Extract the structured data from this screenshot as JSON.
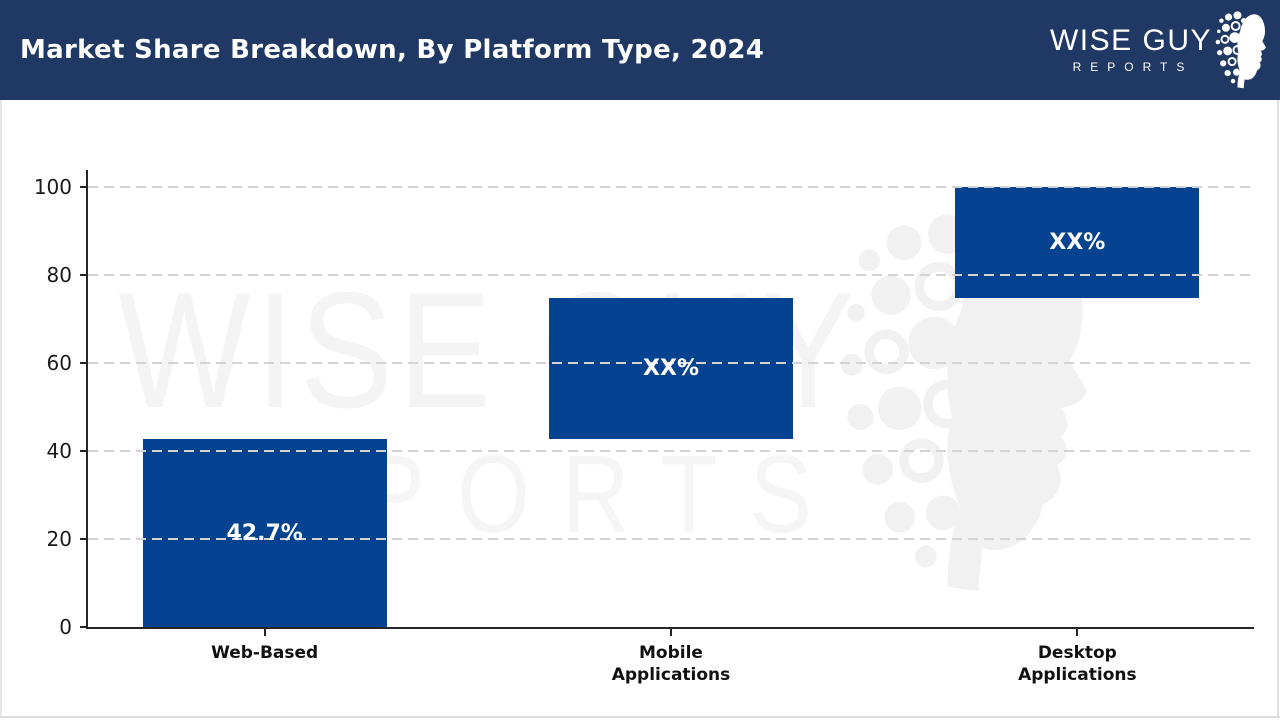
{
  "header": {
    "title": "Market Share Breakdown, By Platform Type, 2024",
    "logo": {
      "wordmark": "WISE GUY",
      "subtext": "REPORTS"
    }
  },
  "watermark": {
    "wordmark": "WISE GUY",
    "subtext": "REPORTS"
  },
  "colors": {
    "header_background": "#203864",
    "bar_blue": "#05428f",
    "grid_gray": "#d3d3d3",
    "axis_black": "#262626"
  },
  "chart_data": {
    "type": "bar",
    "subtype": "waterfall",
    "title": "Market Share Breakdown, By Platform Type, 2024",
    "categories": [
      "Web-Based",
      "Mobile\nApplications",
      "Desktop\nApplications"
    ],
    "segments": [
      {
        "category": "Web-Based",
        "start": 0,
        "end": 42.7,
        "label": "42.7%"
      },
      {
        "category": "Mobile Applications",
        "start": 42.7,
        "end": 74.7,
        "label": "XX%"
      },
      {
        "category": "Desktop Applications",
        "start": 74.7,
        "end": 100,
        "label": "XX%"
      }
    ],
    "ylim": [
      0,
      100
    ],
    "yticks": [
      0,
      20,
      40,
      60,
      80,
      100
    ],
    "xlabel": "",
    "ylabel": "",
    "legend": "none",
    "grid": "horizontal dashed, drawn over bars",
    "bar_color": "#05428f",
    "bar_label_color": "#ffffff"
  }
}
